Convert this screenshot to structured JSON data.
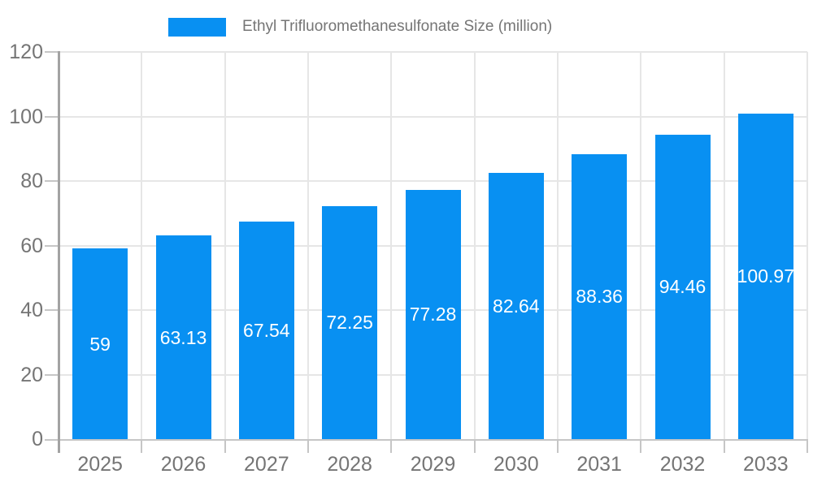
{
  "page": {
    "background": "#ffffff"
  },
  "colors": {
    "bar": "#0890f2",
    "grid_line": "#e6e6e6",
    "axis_line": "#a3a3a3",
    "tick_line": "#c6c6c6",
    "axis_text": "#757575",
    "bar_label_text": "#ffffff",
    "background": "#ffffff"
  },
  "chart_data": {
    "type": "bar",
    "title": "",
    "categories": [
      "2025",
      "2026",
      "2027",
      "2028",
      "2029",
      "2030",
      "2031",
      "2032",
      "2033"
    ],
    "series": [
      {
        "name": "Ethyl Trifluoromethanesulfonate Size (million)",
        "values": [
          59,
          63.13,
          67.54,
          72.25,
          77.28,
          82.64,
          88.36,
          94.46,
          100.97
        ],
        "color": "#0890f2"
      }
    ],
    "xlabel": "",
    "ylabel": "",
    "ylim": [
      0,
      120
    ],
    "yticks": [
      0,
      20,
      40,
      60,
      80,
      100,
      120
    ],
    "grid": true,
    "legend_position": "top",
    "value_label_position": "inside-center",
    "value_label_color": "#ffffff"
  }
}
